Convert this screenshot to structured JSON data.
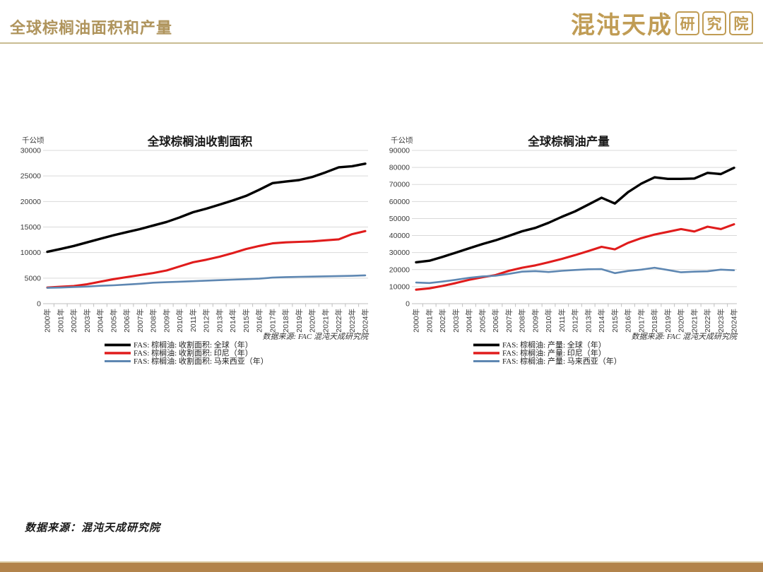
{
  "header": {
    "title": "全球棕榈油面积和产量",
    "logo_script_text": "混沌天成",
    "logo_seal_chars": [
      "研",
      "究",
      "院"
    ]
  },
  "footer": {
    "source_text": "数据来源：混沌天成研究院"
  },
  "colors": {
    "accent_gold": "#af945c",
    "logo_gold": "#c09c54",
    "bottom_bar": "#b2834b",
    "header_rule": "#c9bc92",
    "gridline": "#d9d9d9",
    "axis_line": "#bfbfbf",
    "series_global": "#000000",
    "series_indonesia": "#e01c1c",
    "series_malaysia": "#5e87b2"
  },
  "chart_data": [
    {
      "type": "line",
      "title": "全球棕榈油收割面积",
      "unit": "千公顷",
      "source_note": "数据来源: FAC  混沌天成研究院",
      "ylim": [
        0,
        30000
      ],
      "ytick_step": 5000,
      "grid": true,
      "legend_position": "bottom",
      "categories": [
        "2000年",
        "2001年",
        "2002年",
        "2003年",
        "2004年",
        "2005年",
        "2006年",
        "2007年",
        "2008年",
        "2009年",
        "2010年",
        "2011年",
        "2012年",
        "2013年",
        "2014年",
        "2015年",
        "2016年",
        "2017年",
        "2018年",
        "2019年",
        "2020年",
        "2021年",
        "2022年",
        "2023年",
        "2024年"
      ],
      "series": [
        {
          "name": "FAS: 棕榈油: 收割面积: 全球（年）",
          "color": "#000000",
          "values": [
            10150,
            10700,
            11300,
            12000,
            12700,
            13400,
            14000,
            14600,
            15300,
            16000,
            16900,
            17900,
            18600,
            19400,
            20200,
            21100,
            22300,
            23600,
            23900,
            24200,
            24800,
            25700,
            26700,
            26900,
            27400
          ]
        },
        {
          "name": "FAS: 棕榈油: 收割面积: 印尼（年）",
          "color": "#e01c1c",
          "values": [
            3150,
            3300,
            3450,
            3800,
            4300,
            4800,
            5200,
            5600,
            6000,
            6500,
            7300,
            8100,
            8600,
            9200,
            9900,
            10700,
            11300,
            11800,
            12000,
            12100,
            12200,
            12400,
            12600,
            13600,
            14200
          ]
        },
        {
          "name": "FAS: 棕榈油: 收割面积: 马来西亚（年）",
          "color": "#5e87b2",
          "values": [
            3100,
            3150,
            3250,
            3350,
            3500,
            3600,
            3750,
            3900,
            4100,
            4200,
            4300,
            4400,
            4500,
            4600,
            4700,
            4800,
            4900,
            5100,
            5200,
            5250,
            5300,
            5350,
            5400,
            5450,
            5550
          ]
        }
      ]
    },
    {
      "type": "line",
      "title": "全球棕榈油产量",
      "unit": "千公顷",
      "source_note": "数据来源: FAC  混沌天成研究院",
      "ylim": [
        0,
        90000
      ],
      "ytick_step": 10000,
      "grid": true,
      "legend_position": "bottom",
      "categories": [
        "2000年",
        "2001年",
        "2002年",
        "2003年",
        "2004年",
        "2005年",
        "2006年",
        "2007年",
        "2008年",
        "2009年",
        "2010年",
        "2011年",
        "2012年",
        "2013年",
        "2014年",
        "2015年",
        "2016年",
        "2017年",
        "2018年",
        "2019年",
        "2020年",
        "2021年",
        "2022年",
        "2023年",
        "2024年"
      ],
      "series": [
        {
          "name": "FAS: 棕榈油: 产量: 全球（年）",
          "color": "#000000",
          "values": [
            24300,
            25200,
            27500,
            30000,
            32500,
            35000,
            37200,
            39800,
            42500,
            44500,
            47500,
            51000,
            54200,
            58200,
            62200,
            58800,
            65500,
            70500,
            74200,
            73300,
            73300,
            73500,
            76800,
            76100,
            79800
          ]
        },
        {
          "name": "FAS: 棕榈油: 产量: 印尼（年）",
          "color": "#e01c1c",
          "values": [
            8200,
            9000,
            10400,
            12100,
            14000,
            15500,
            16800,
            19300,
            21100,
            22500,
            24300,
            26300,
            28500,
            30900,
            33400,
            31900,
            35700,
            38500,
            40600,
            42200,
            43800,
            42400,
            45200,
            43800,
            46600
          ]
        },
        {
          "name": "FAS: 棕榈油: 产量: 马来西亚（年）",
          "color": "#5e87b2",
          "values": [
            12400,
            12100,
            13000,
            14000,
            15200,
            16000,
            16400,
            17500,
            18800,
            19100,
            18600,
            19300,
            19800,
            20200,
            20300,
            17900,
            19200,
            20000,
            21100,
            19800,
            18400,
            18800,
            19000,
            20000,
            19600
          ]
        }
      ]
    }
  ]
}
